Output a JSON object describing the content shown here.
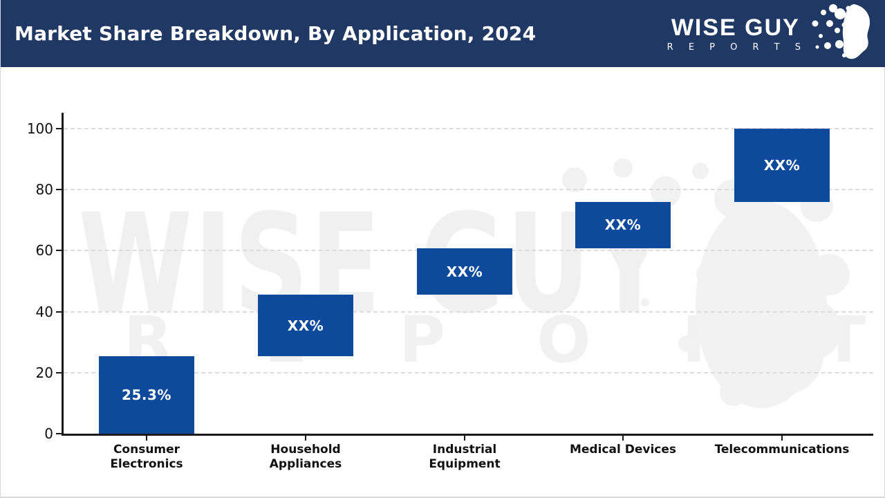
{
  "header": {
    "title": "Market Share Breakdown, By Application, 2024",
    "bg_color": "#1f3864",
    "logo": {
      "line1": "WISE GUY",
      "line2": "R E P O R T S",
      "icon": "face-profile-dots-icon"
    }
  },
  "watermark": {
    "line1": "WISE GUY",
    "line2": "REPORTS"
  },
  "chart_data": {
    "type": "bar",
    "subtype": "waterfall",
    "title": "Market Share Breakdown, By Application, 2024",
    "categories": [
      "Consumer\nElectronics",
      "Household\nAppliances",
      "Industrial\nEquipment",
      "Medical Devices",
      "Telecommunications"
    ],
    "segments": [
      {
        "category": "Consumer Electronics",
        "start": 0,
        "end": 25.3,
        "label": "25.3%"
      },
      {
        "category": "Household Appliances",
        "start": 25.3,
        "end": 45.5,
        "label": "XX%"
      },
      {
        "category": "Industrial Equipment",
        "start": 45.5,
        "end": 60.8,
        "label": "XX%"
      },
      {
        "category": "Medical Devices",
        "start": 60.8,
        "end": 76.0,
        "label": "XX%"
      },
      {
        "category": "Telecommunications",
        "start": 76.0,
        "end": 100.0,
        "label": "XX%"
      }
    ],
    "y_ticks": [
      0,
      20,
      40,
      60,
      80,
      100
    ],
    "ylim": [
      0,
      105
    ],
    "xlabel": "",
    "ylabel": "",
    "grid": true,
    "grid_style": "dashed",
    "legend": false,
    "bar_color": "#0d4a9c",
    "bar_label_color": "#ffffff",
    "axis_color": "#1a1a1a"
  }
}
